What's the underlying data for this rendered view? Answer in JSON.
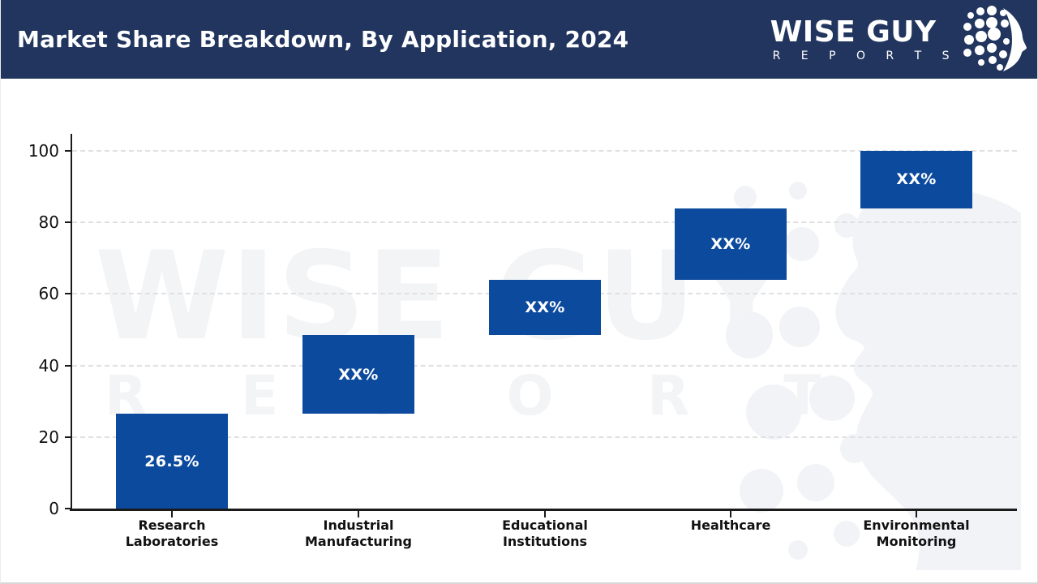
{
  "header": {
    "title": "Market Share Breakdown, By Application, 2024",
    "logo": {
      "brand": "WISE GUY",
      "sub": "R E P O R T S"
    }
  },
  "watermark": {
    "brand": "WISE GUY",
    "sub": "R E P O R T S"
  },
  "colors": {
    "header_bg": "#21355f",
    "bar": "#0c4a9e",
    "bar_label": "#ffffff",
    "grid": "#e0e0e3",
    "axis": "#1a1a1a",
    "watermark": "#f3f4f6"
  },
  "chart_data": {
    "type": "bar",
    "subtype": "waterfall",
    "title": "Market Share Breakdown, By Application, 2024",
    "xlabel": "",
    "ylabel": "",
    "ylim": [
      0,
      105
    ],
    "yticks": [
      0,
      20,
      40,
      60,
      80,
      100
    ],
    "grid": "horizontal-dashed",
    "legend": "none",
    "categories": [
      [
        "Research",
        "Laboratories"
      ],
      [
        "Industrial",
        "Manufacturing"
      ],
      [
        "Educational",
        "Institutions"
      ],
      [
        "Healthcare"
      ],
      [
        "Environmental",
        "Monitoring"
      ]
    ],
    "segments": [
      {
        "category": "Research Laboratories",
        "start": 0,
        "end": 26.5,
        "label": "26.5%"
      },
      {
        "category": "Industrial Manufacturing",
        "start": 26.5,
        "end": 48.5,
        "label": "XX%"
      },
      {
        "category": "Educational Institutions",
        "start": 48.5,
        "end": 64,
        "label": "XX%"
      },
      {
        "category": "Healthcare",
        "start": 64,
        "end": 84,
        "label": "XX%"
      },
      {
        "category": "Environmental Monitoring",
        "start": 84,
        "end": 100,
        "label": "XX%"
      }
    ]
  }
}
